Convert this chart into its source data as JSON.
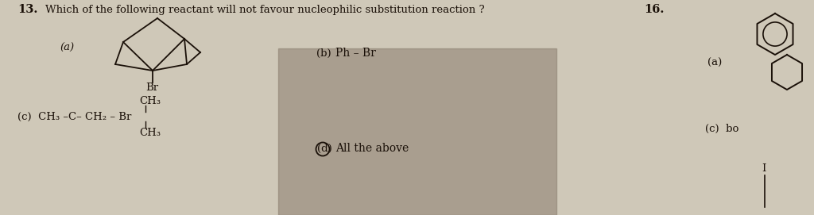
{
  "paper_color": "#cfc8b8",
  "shadow_color": "#8a7d6e",
  "shadow_alpha": 0.55,
  "text_color": "#1a1008",
  "question_num": "13.",
  "question_text": "Which of the following reactant will not favour nucleophilic substitution reaction ?",
  "option_a_label": "(a)",
  "option_b_label": "(b)",
  "option_b_text": "Ph – Br",
  "option_c_label": "(c)",
  "option_d_text": "All the above",
  "label_16": "16.",
  "label_c_right": "(c)  bo",
  "label_a_right": "(a)",
  "faded_text_color": "#7a6e5a"
}
